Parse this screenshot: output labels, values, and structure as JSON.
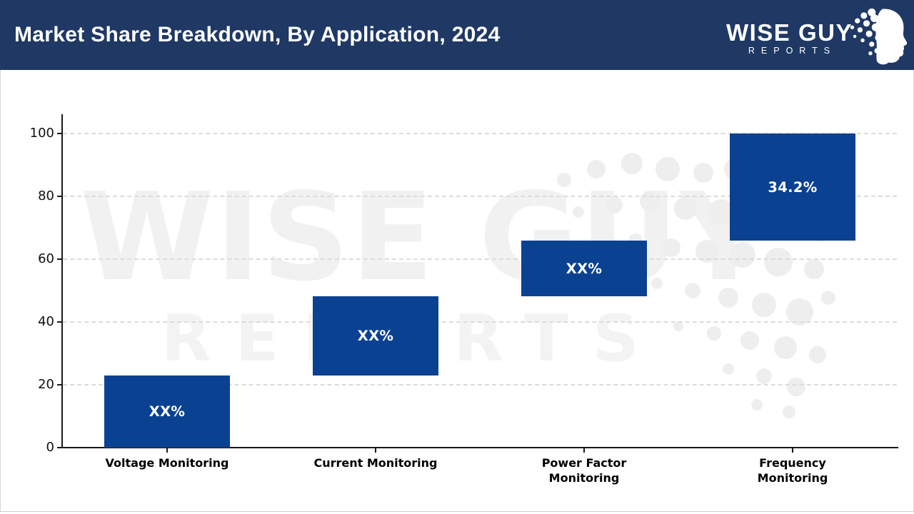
{
  "header": {
    "title": "Market Share Breakdown, By Application, 2024",
    "logo": {
      "brand": "WISE GUY",
      "tagline": "REPORTS"
    }
  },
  "watermark": {
    "brand": "WISE GUY",
    "tagline": "REPORTS"
  },
  "chart_data": {
    "type": "bar",
    "subtype": "floating-waterfall",
    "title": "Market Share Breakdown, By Application, 2024",
    "unit": "market share percent",
    "categories": [
      "Voltage Monitoring",
      "Current Monitoring",
      "Power Factor Monitoring",
      "Frequency Monitoring"
    ],
    "category_lines": [
      [
        "Voltage Monitoring"
      ],
      [
        "Current Monitoring"
      ],
      [
        "Power Factor",
        "Monitoring"
      ],
      [
        "Frequency",
        "Monitoring"
      ]
    ],
    "segments": [
      {
        "category": "Voltage Monitoring",
        "start": 0,
        "end": 23,
        "label": "XX%"
      },
      {
        "category": "Current Monitoring",
        "start": 23,
        "end": 48.2,
        "label": "XX%"
      },
      {
        "category": "Power Factor Monitoring",
        "start": 48.2,
        "end": 65.8,
        "label": "XX%"
      },
      {
        "category": "Frequency Monitoring",
        "start": 65.8,
        "end": 100,
        "label": "34.2%",
        "value": 34.2
      }
    ],
    "ylim": [
      0,
      106
    ],
    "yticks": [
      0,
      20,
      40,
      60,
      80,
      100
    ],
    "grid": "horizontal dashed",
    "legend": "none",
    "bar_color": "#0b4191",
    "bar_label_color": "#ffffff",
    "axis_color": "#1a1a1a",
    "gridline_color": "#dcdcdc"
  },
  "colors": {
    "header_bg": "#1f3864",
    "page_bg": "#ffffff",
    "watermark": "#f1f1f1",
    "frame_line": "#cfcfcf"
  }
}
